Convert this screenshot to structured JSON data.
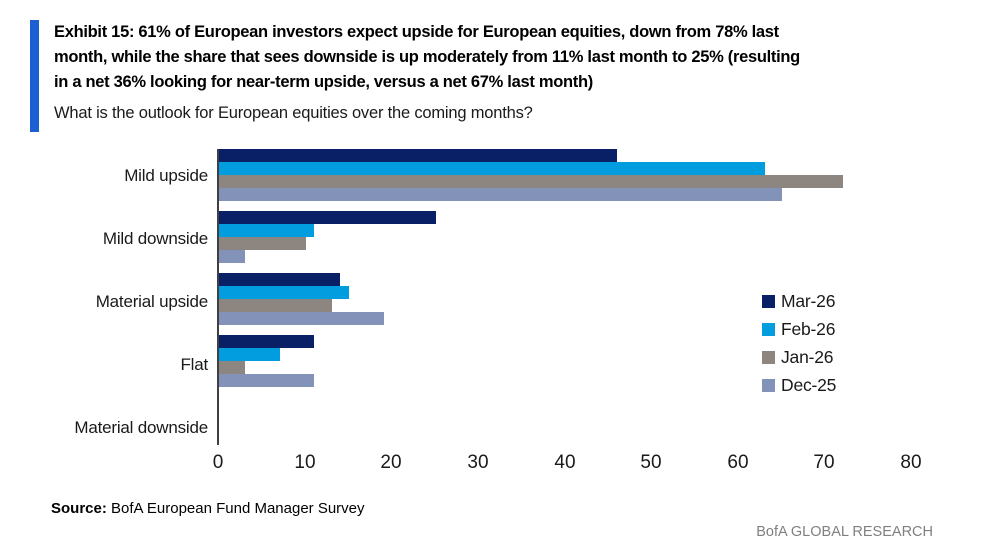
{
  "header": {
    "accent_color": "#1c5fd2",
    "exhibit_title": "Exhibit 15: 61% of European investors expect upside for European equities, down from 78% last month, while the share that sees downside is up moderately from 11% last month to 25% (resulting in a net 36% looking for near-term upside, versus a net 67% last month)",
    "title_lines": [
      "Exhibit 15: 61% of European investors expect upside for European equities, down from 78% last",
      "month, while the share that sees downside is up moderately from 11% last month to 25% (resulting",
      "in a net 36% looking for near-term upside, versus a net 67% last month)"
    ],
    "question": "What is the outlook for European equities over the coming months?"
  },
  "chart_data": {
    "type": "bar",
    "orientation": "horizontal",
    "title": "What is the outlook for European equities over the coming months?",
    "xlabel": "",
    "ylabel": "",
    "categories": [
      "Mild upside",
      "Mild downside",
      "Material upside",
      "Flat",
      "Material downside"
    ],
    "series": [
      {
        "name": "Mar-26",
        "color": "#0a2066",
        "values": [
          46,
          25,
          14,
          11,
          0
        ]
      },
      {
        "name": "Feb-26",
        "color": "#029dde",
        "values": [
          63,
          11,
          15,
          7,
          0
        ]
      },
      {
        "name": "Jan-26",
        "color": "#8d8580",
        "values": [
          72,
          10,
          13,
          3,
          0
        ]
      },
      {
        "name": "Dec-25",
        "color": "#8292b8",
        "values": [
          65,
          3,
          19,
          11,
          0
        ]
      }
    ],
    "x_ticks": [
      0,
      10,
      20,
      30,
      40,
      50,
      60,
      70,
      80
    ],
    "xlim": [
      0,
      80
    ],
    "grid": false,
    "legend_position": "right",
    "axis_color": "#404040"
  },
  "footer": {
    "source_label": "Source:",
    "source_text": " BofA European Fund Manager Survey",
    "brand": "BofA GLOBAL RESEARCH"
  }
}
